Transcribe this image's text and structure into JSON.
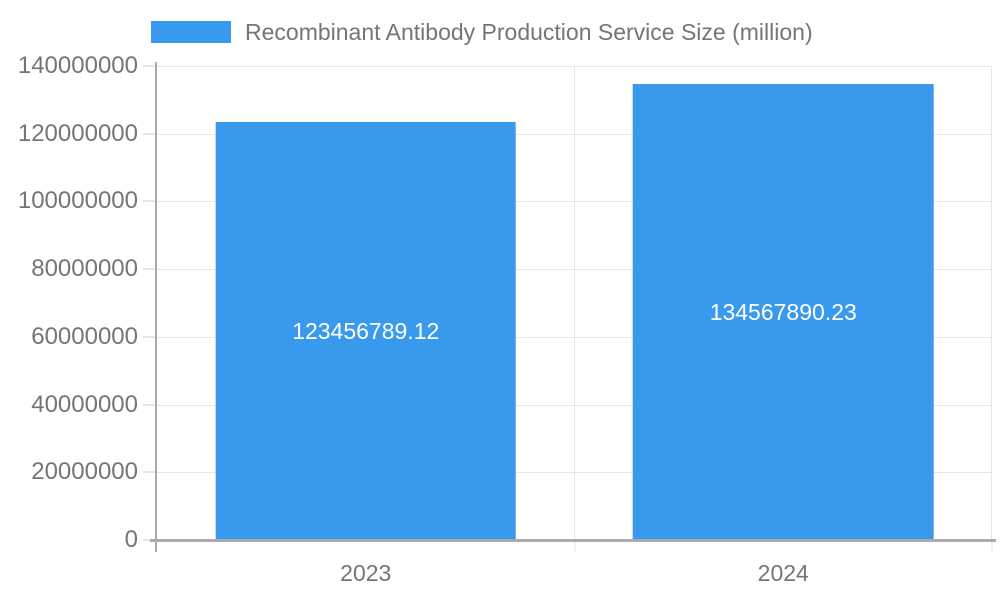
{
  "legend": {
    "label": "Recombinant Antibody Production Service Size (million)"
  },
  "chart_data": {
    "type": "bar",
    "title": "Recombinant Antibody Production Service Size (million)",
    "categories": [
      "2023",
      "2024"
    ],
    "series": [
      {
        "name": "Recombinant Antibody Production Service Size (million)",
        "values": [
          123456789.12,
          134567890.23
        ],
        "value_labels": [
          "123456789.12",
          "134567890.23"
        ]
      }
    ],
    "xlabel": "",
    "ylabel": "",
    "ylim": [
      0,
      140000000
    ],
    "ytick_step": 20000000,
    "ytick_labels": [
      "0",
      "20000000",
      "40000000",
      "60000000",
      "80000000",
      "100000000",
      "120000000",
      "140000000"
    ],
    "grid": true,
    "legend_position": "top-left",
    "bar_label_position": "inside-center"
  },
  "colors": {
    "bar": "#3999ec",
    "axis_text": "#757575",
    "bar_label_text": "#ffffff",
    "grid_line": "#e6e6e6",
    "tick_line": "#cccccc",
    "axis_line": "#ababab",
    "background": "#ffffff"
  }
}
